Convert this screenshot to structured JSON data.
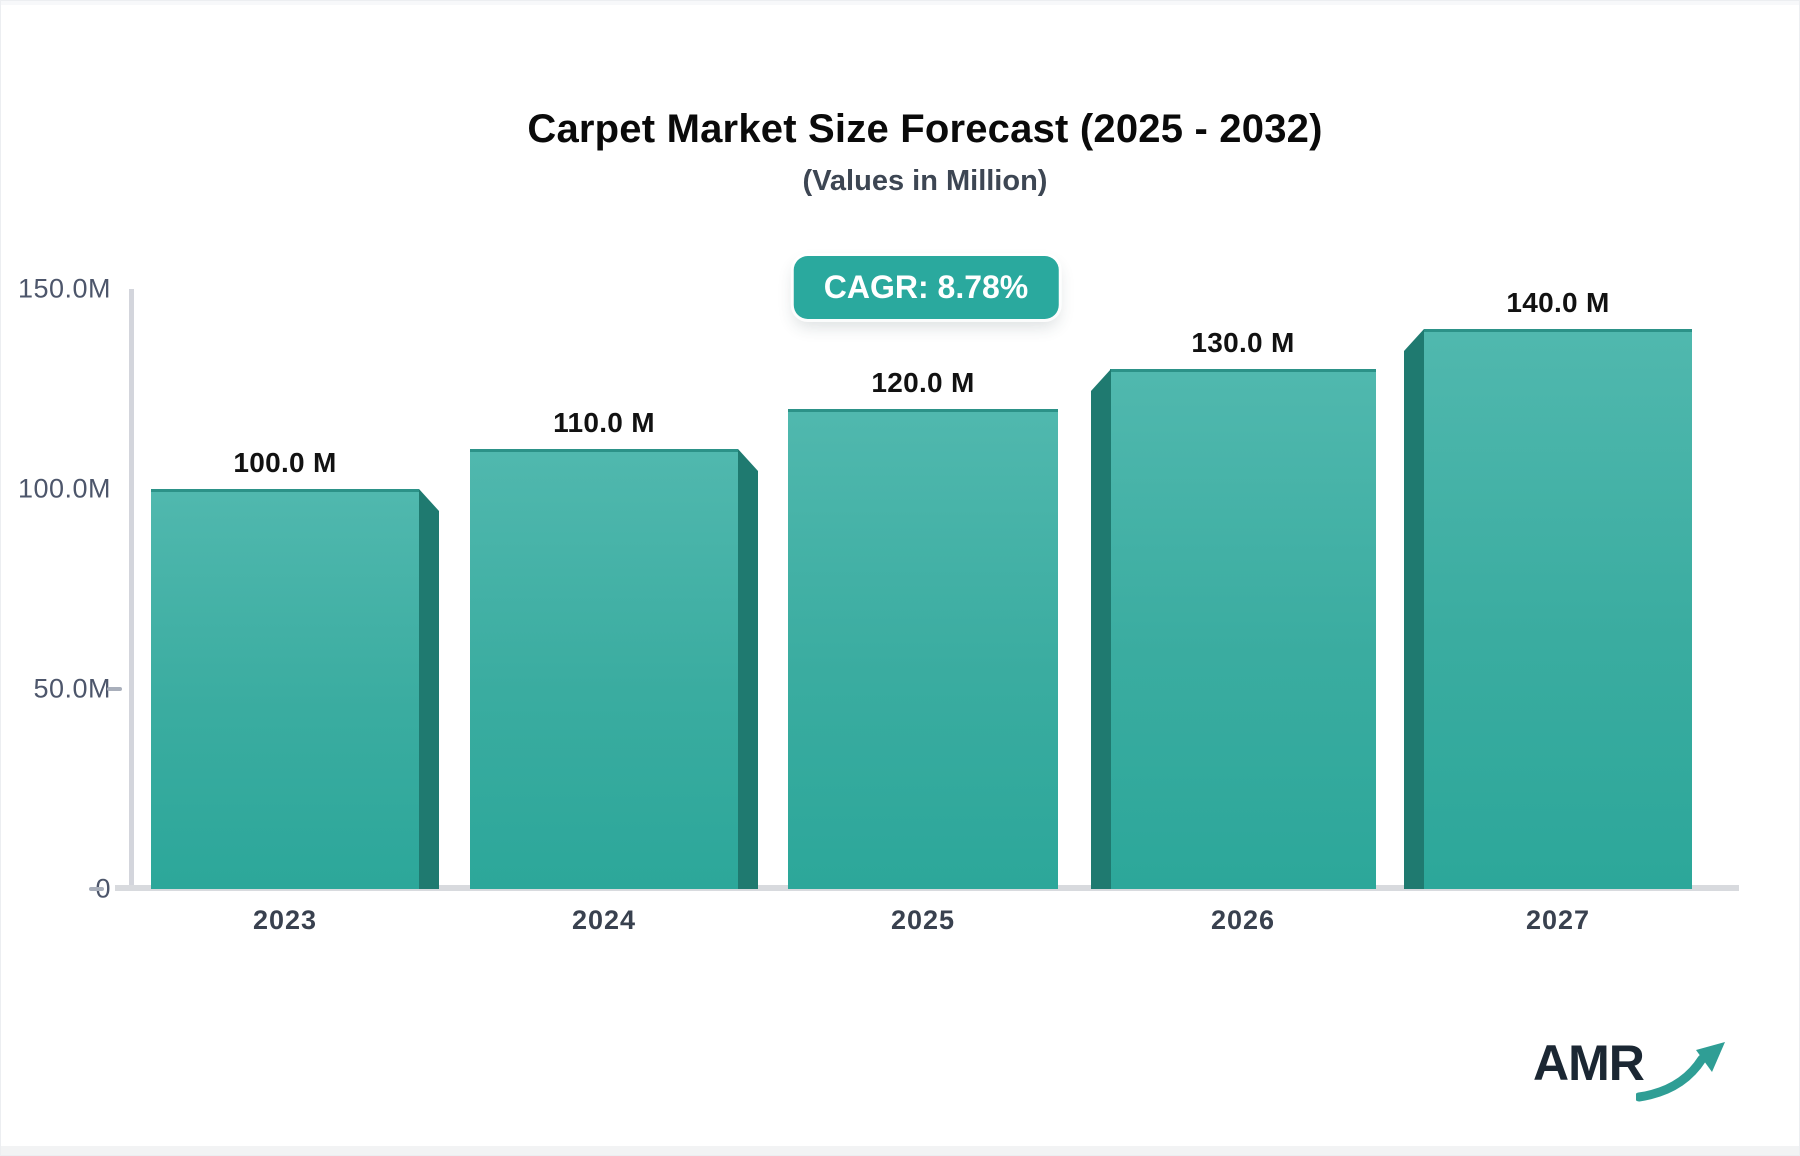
{
  "header": {
    "title": "Carpet Market Size Forecast (2025 - 2032)",
    "subtitle": "(Values in Million)"
  },
  "badge": {
    "label": "CAGR: 8.78%",
    "bg_color": "#2aa99e",
    "text_color": "#ffffff"
  },
  "chart_data": {
    "type": "bar",
    "title": "Carpet Market Size Forecast (2025 - 2032)",
    "subtitle": "(Values in Million)",
    "unit": "Million",
    "categories": [
      "2023",
      "2024",
      "2025",
      "2026",
      "2027"
    ],
    "values": [
      100.0,
      110.0,
      120.0,
      130.0,
      140.0
    ],
    "value_labels": [
      "100.0 M",
      "110.0 M",
      "120.0 M",
      "130.0 M",
      "140.0 M"
    ],
    "cagr_annotation": "CAGR: 8.78%",
    "ylim": [
      0,
      150
    ],
    "y_ticks": [
      {
        "label": "150.0M",
        "value": 150,
        "dash": false
      },
      {
        "label": "100.0M",
        "value": 100,
        "dash": false
      },
      {
        "label": "50.0M",
        "value": 50,
        "dash": true
      },
      {
        "label": "0",
        "value": 0,
        "dash": true
      }
    ],
    "grid": "off",
    "legend": "none",
    "bar_color_top": "#50b8ae",
    "bar_color_bottom": "#2ca79a",
    "bar_side_color": "#1f7a70",
    "bar_top_edge_color": "#2c9288"
  },
  "logo": {
    "text": "AMR",
    "arrow_color": "#2f9e95"
  }
}
